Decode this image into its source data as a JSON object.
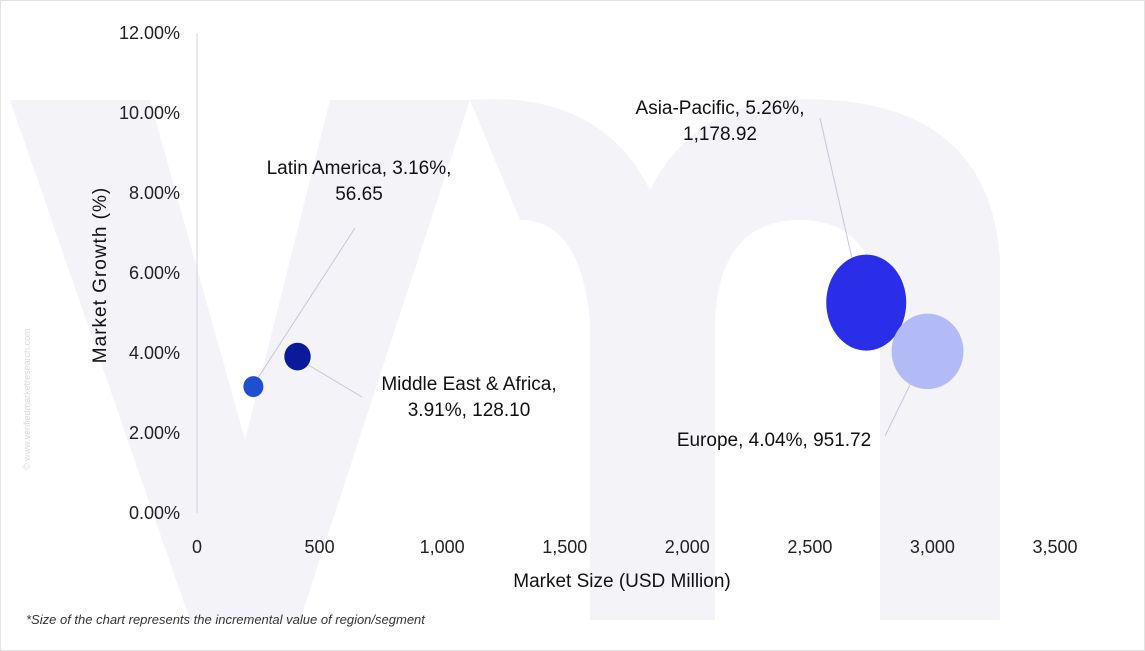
{
  "chart_data": {
    "type": "scatter",
    "subtype": "bubble",
    "xlabel": "Market Size (USD Million)",
    "ylabel": "Market Growth (%)",
    "xlim": [
      0,
      3500
    ],
    "ylim": [
      0,
      12
    ],
    "x_ticks": [
      "0",
      "500",
      "1,000",
      "1,500",
      "2,000",
      "2,500",
      "3,000",
      "3,500"
    ],
    "y_ticks": [
      "0.00%",
      "2.00%",
      "4.00%",
      "6.00%",
      "8.00%",
      "10.00%",
      "12.00%"
    ],
    "grid": false,
    "points": [
      {
        "region": "Latin America",
        "x": 230,
        "y": 3.16,
        "bubble_value": 56.65,
        "label_line1": "Latin America, 3.16%,",
        "label_line2": "56.65",
        "color": "#1f4fd0"
      },
      {
        "region": "Middle East & Africa",
        "x": 410,
        "y": 3.91,
        "bubble_value": 128.1,
        "label_line1": "Middle East & Africa,",
        "label_line2": "3.91%, 128.10",
        "color": "#0a1a9a"
      },
      {
        "region": "Asia-Pacific",
        "x": 2730,
        "y": 5.26,
        "bubble_value": 1178.92,
        "label_line1": "Asia-Pacific, 5.26%,",
        "label_line2": "1,178.92",
        "color": "#2a2ee8"
      },
      {
        "region": "Europe",
        "x": 2980,
        "y": 4.04,
        "bubble_value": 951.72,
        "label_line1": "Europe, 4.04%, 951.72",
        "label_line2": "",
        "color": "#b3bbf7"
      }
    ]
  },
  "footnote": "*Size of the chart represents the incremental value of region/segment",
  "watermark": "© www.verifiedmarketresearch.com"
}
